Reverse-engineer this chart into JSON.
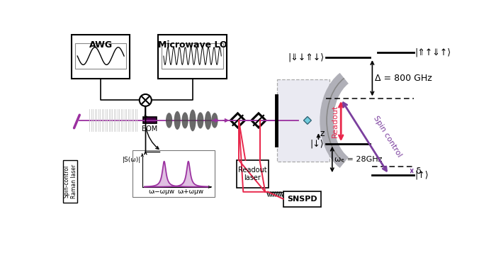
{
  "bg_color": "#ffffff",
  "beam_color": "#9b30a0",
  "readout_color": "#e8274b",
  "spin_color": "#7b3f9e",
  "awg_label": "AWG",
  "mwlo_label": "Microwave LO",
  "eom_label": "EOM",
  "snspd_label": "SNSPD",
  "readout_laser_label": "Readout\nlaser",
  "spin_laser_label": "Spin-control\nRaman laser",
  "readout_label": "Readout",
  "spin_ctrl_label": "Spin control",
  "delta_label": "Δ = 800 GHz",
  "omega_label": "ωₑ = 28GHz",
  "delta_small": "δ",
  "state_dd": "|⇓↓⇑↓⟩",
  "state_uu": "|⇑↑⇓↑⟩",
  "state_down": "|↓⟩",
  "state_up": "|↑⟩",
  "spectrum_label": "|S(ω)|",
  "omega_minus": "ωₗ−ωμw",
  "omega_plus": "ωₗ+ωμw"
}
